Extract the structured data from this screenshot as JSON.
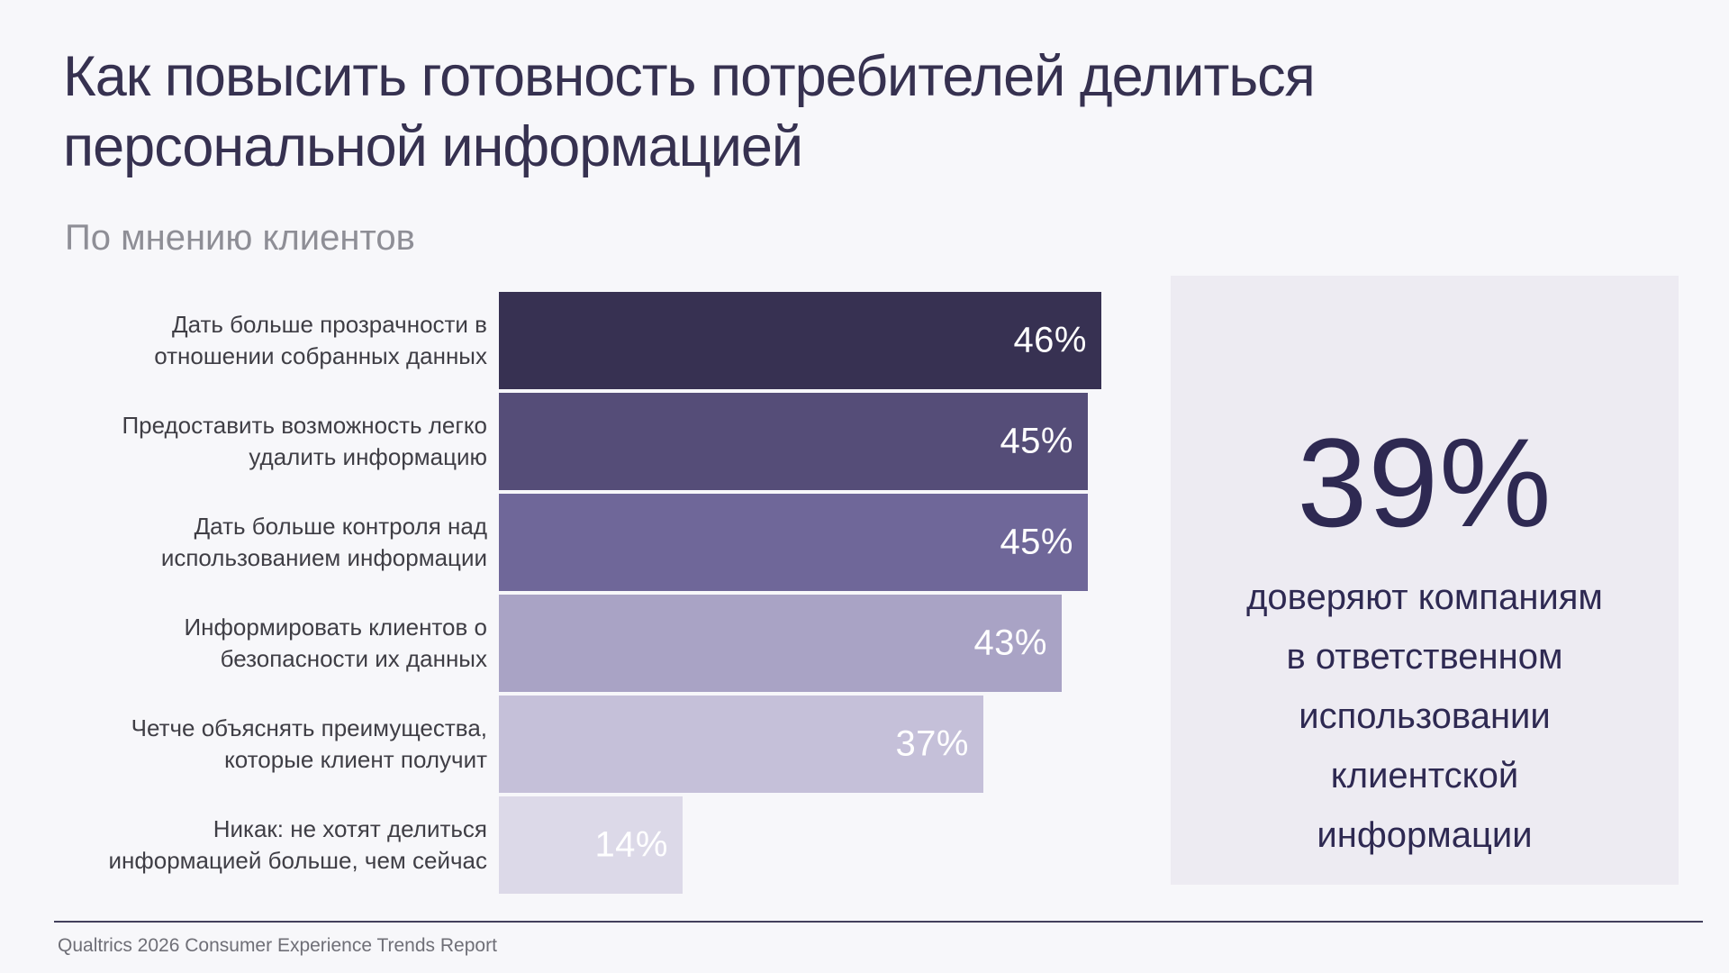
{
  "page": {
    "title": "Как повысить готовность потребителей делиться\nперсональной информацией",
    "subtitle": "По мнению клиентов",
    "footer": "Qualtrics 2026 Consumer Experience Trends Report",
    "background_color": "#f7f7fa",
    "title_color": "#363150",
    "subtitle_color": "#8e8e96"
  },
  "chart_data": {
    "type": "bar",
    "orientation": "horizontal",
    "title": "Как повысить готовность потребителей делиться персональной информацией",
    "subtitle": "По мнению клиентов",
    "unit": "%",
    "xlim": [
      0,
      46
    ],
    "grid": false,
    "legend": false,
    "categories": [
      "Дать больше прозрачности в отношении собранных данных",
      "Предоставить возможность легко удалить информацию",
      "Дать больше контроля над использованием информации",
      "Информировать клиентов о безопасности их данных",
      "Четче объяснять преимущества, которые клиент получит",
      "Никак: не хотят делиться информацией больше, чем сейчас"
    ],
    "categories_display": [
      "Дать больше прозрачности в\nотношении собранных данных",
      "Предоставить возможность легко\nудалить информацию",
      "Дать больше контроля над\nиспользованием информации",
      "Информировать клиентов о\nбезопасности их данных",
      "Четче объяснять преимущества,\nкоторые клиент получит",
      "Никак: не хотят делиться\nинформацией больше, чем сейчас"
    ],
    "values": [
      46,
      45,
      45,
      43,
      37,
      14
    ],
    "value_labels": [
      "46%",
      "45%",
      "45%",
      "43%",
      "37%",
      "14%"
    ],
    "bar_colors": [
      "#373152",
      "#554d78",
      "#6f6799",
      "#a9a3c5",
      "#c5c0d9",
      "#dcd9e8"
    ],
    "value_label_color": "#ffffff",
    "category_label_color": "#3f3e45"
  },
  "trust_panel": {
    "value": "39%",
    "text": "доверяют компаниям\nв ответственном\nиспользовании\nклиентской\nинформации",
    "background_color": "#edebf2",
    "text_color": "#2e2952"
  }
}
